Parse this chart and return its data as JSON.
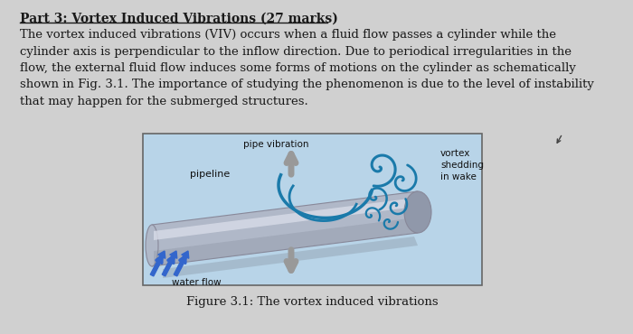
{
  "background_color": "#d0d0d0",
  "title": "Part 3: Vortex Induced Vibrations (27 marks)",
  "body_text": "The vortex induced vibrations (VIV) occurs when a fluid flow passes a cylinder while the\ncylinder axis is perpendicular to the inflow direction. Due to periodical irregularities in the\nflow, the external fluid flow induces some forms of motions on the cylinder as schematically\nshown in Fig. 3.1. The importance of studying the phenomenon is due to the level of instability\nthat may happen for the submerged structures.",
  "figure_caption": "Figure 3.1: The vortex induced vibrations",
  "label_pipeline": "pipeline",
  "label_pipe_vibration": "pipe vibration",
  "label_vortex": "vortex\nshedding\nin wake",
  "label_water_flow": "water flow",
  "diagram_bg": "#b8d4e8",
  "text_color": "#1a1a1a",
  "title_fontsize": 10,
  "body_fontsize": 9.5,
  "caption_fontsize": 9.5,
  "swirl_color": "#1a7aaa",
  "arrow_color": "#3366cc",
  "cylinder_body": "#b0b8c8",
  "cylinder_highlight": "#d8dce8",
  "cylinder_end": "#9098aa",
  "cylinder_edge": "#888899"
}
